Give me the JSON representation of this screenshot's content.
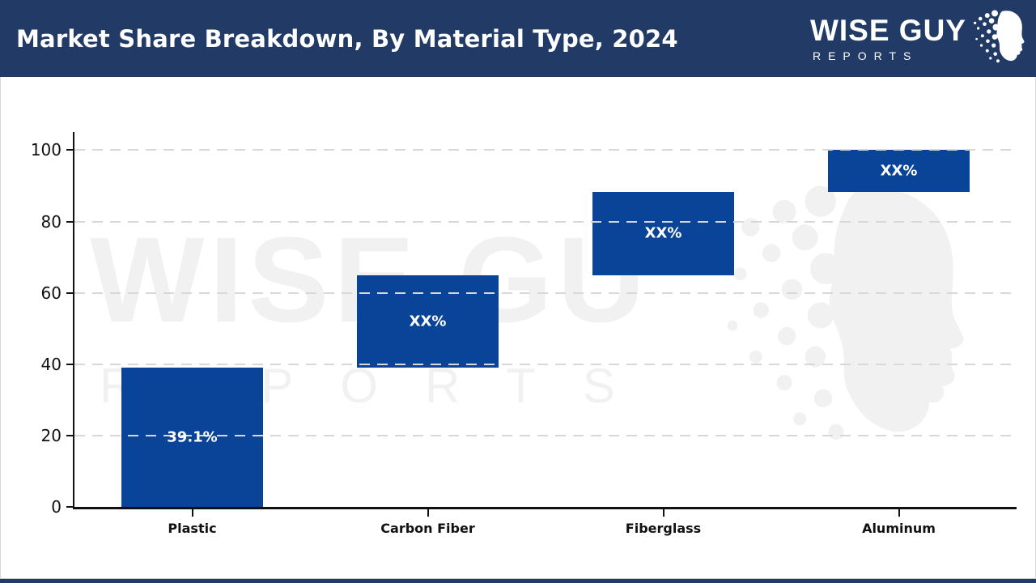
{
  "header": {
    "title": "Market Share Breakdown, By Material Type, 2024",
    "logo": {
      "name": "WISE GUY",
      "subtitle": "REPORTS"
    }
  },
  "watermark": {
    "name": "WISE GU",
    "subtitle": "REPORTS"
  },
  "colors": {
    "header_bg": "#213A66",
    "bar_blue": "#0A4499",
    "gridline": "#D8D8D8",
    "watermark_gray": "#F1F1F1"
  },
  "chart_data": {
    "type": "bar",
    "subtype": "waterfall",
    "title": "Market Share Breakdown, By Material Type, 2024",
    "categories": [
      "Plastic",
      "Carbon Fiber",
      "Fiberglass",
      "Aluminum"
    ],
    "bars": [
      {
        "category": "Plastic",
        "start": 0,
        "end": 39.1,
        "label": "39.1%"
      },
      {
        "category": "Carbon Fiber",
        "start": 39.1,
        "end": 65.0,
        "label": "XX%"
      },
      {
        "category": "Fiberglass",
        "start": 65.0,
        "end": 88.4,
        "label": "XX%"
      },
      {
        "category": "Aluminum",
        "start": 88.4,
        "end": 100.0,
        "label": "XX%"
      }
    ],
    "y_ticks": [
      0,
      20,
      40,
      60,
      80,
      100
    ],
    "ylim": [
      0,
      105.1
    ],
    "xlabel": "",
    "ylabel": "",
    "legend": "none",
    "grid": "horizontal dashed, drawn above bars",
    "bar_label_color": "#FFFFFF",
    "value_unit": "%"
  }
}
